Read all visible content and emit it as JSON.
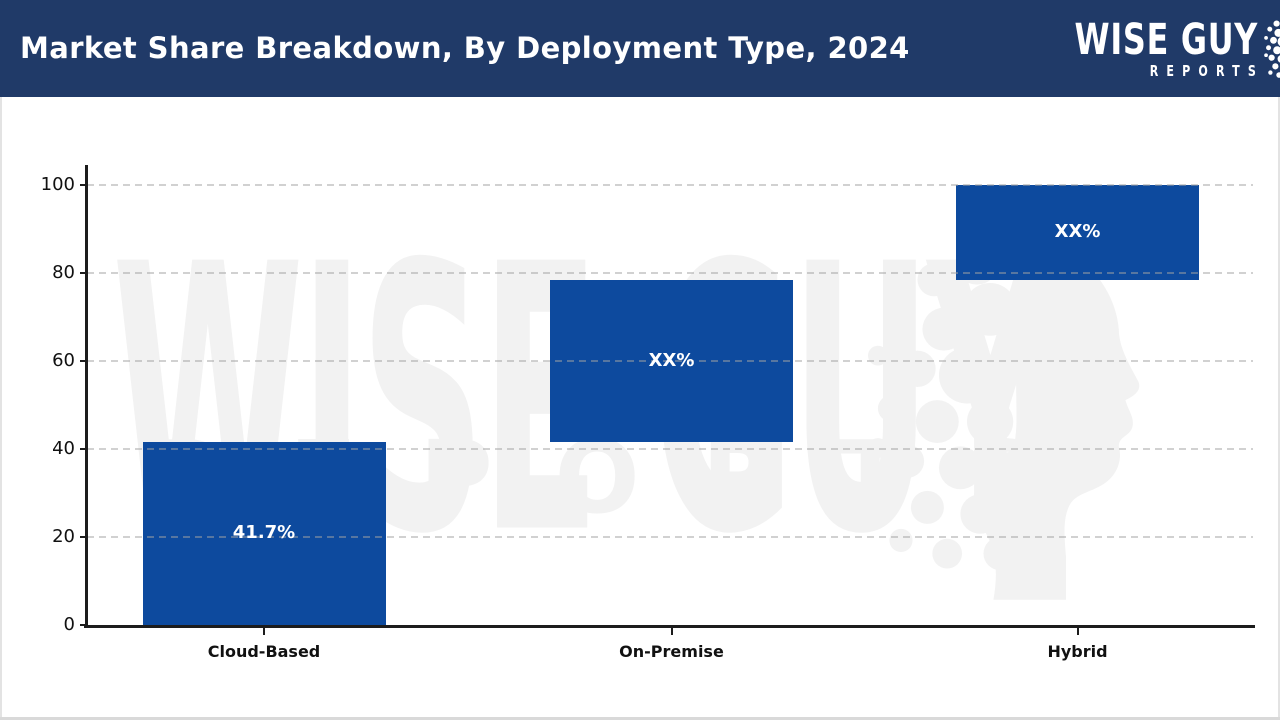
{
  "header": {
    "title": "Market Share Breakdown, By Deployment Type, 2024",
    "bg_color": "#203a68",
    "logo": {
      "name": "Wise Guy Reports",
      "line1": "WISE GUY",
      "line2": "REPORTS"
    }
  },
  "chart_data": {
    "type": "bar",
    "subtype": "waterfall",
    "title": "Market Share Breakdown, By Deployment Type, 2024",
    "categories": [
      "Cloud-Based",
      "On-Premise",
      "Hybrid"
    ],
    "bars": [
      {
        "category": "Cloud-Based",
        "start": 0,
        "end": 41.7,
        "value": 41.7,
        "label": "41.7%"
      },
      {
        "category": "On-Premise",
        "start": 41.7,
        "end": 78.5,
        "value": 36.8,
        "label": "XX%"
      },
      {
        "category": "Hybrid",
        "start": 78.5,
        "end": 100,
        "value": 21.5,
        "label": "XX%"
      }
    ],
    "xlabel": "",
    "ylabel": "",
    "ylim": [
      0,
      104.5
    ],
    "yticks": [
      0,
      20,
      40,
      60,
      80,
      100
    ],
    "grid": "horizontal-dashed",
    "legend": null,
    "bar_color": "#0d4a9e",
    "bar_label_color": "#ffffff",
    "axis_color": "#1c1c1c"
  },
  "watermark": {
    "line1": "WISE GUY",
    "line2": "REPORTS"
  }
}
